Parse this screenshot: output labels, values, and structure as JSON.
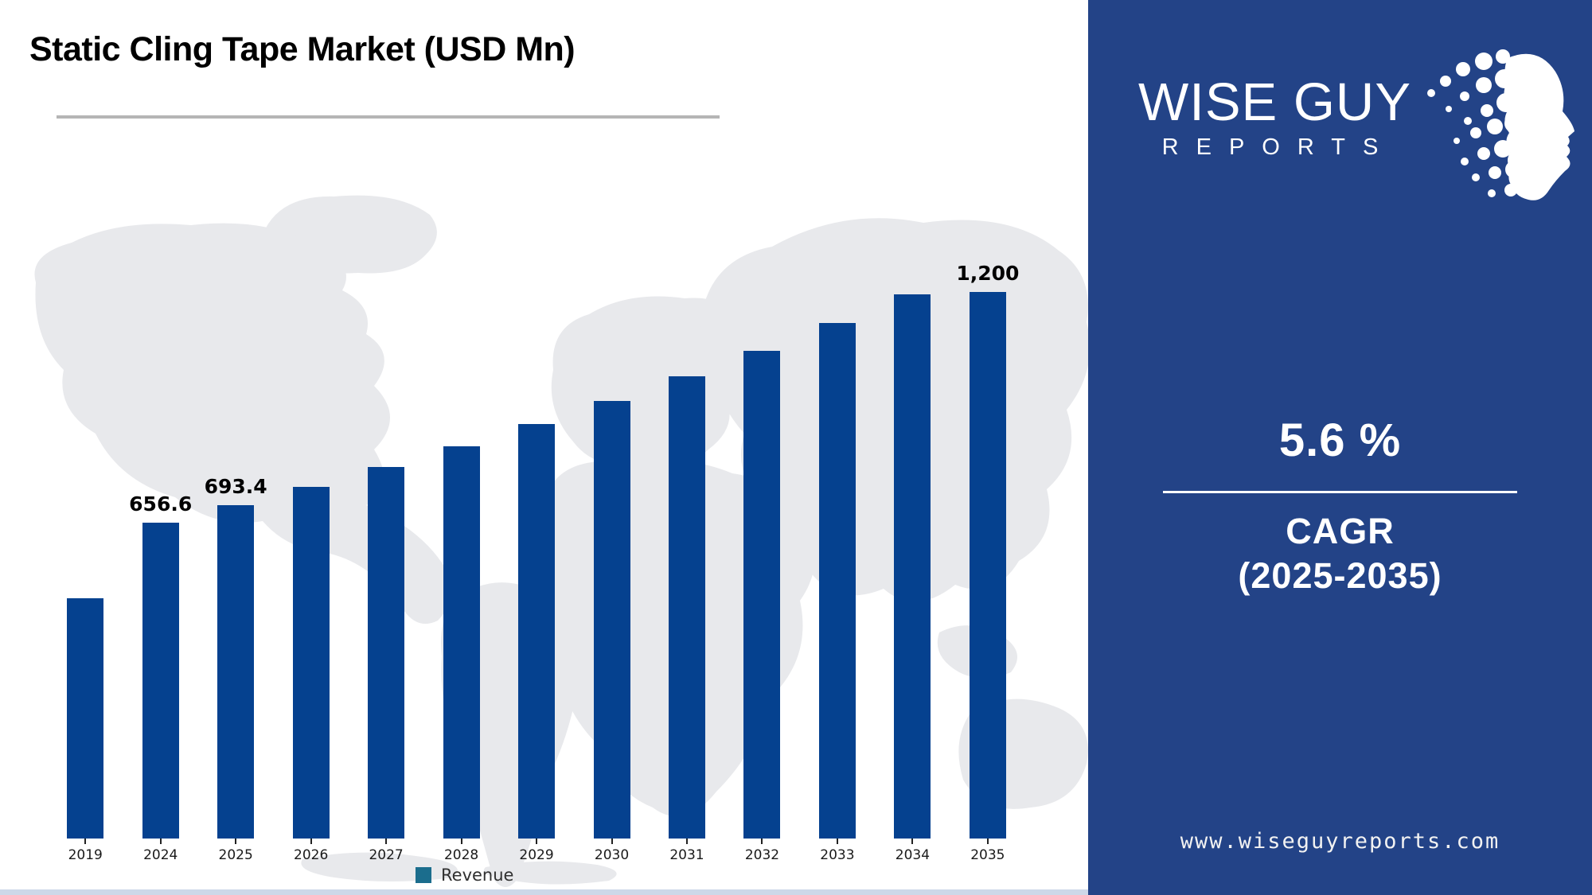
{
  "header": {
    "title": "Static Cling Tape Market (USD Mn)"
  },
  "chart_data": {
    "type": "bar",
    "title": "Static Cling Tape Market (USD Mn)",
    "unit": "USD Mn",
    "categories": [
      "2019",
      "2024",
      "2025",
      "2026",
      "2027",
      "2028",
      "2029",
      "2030",
      "2031",
      "2032",
      "2033",
      "2034",
      "2035"
    ],
    "values": [
      500,
      656.6,
      693.4,
      732.2,
      773.2,
      816.5,
      862.3,
      910.5,
      961.5,
      1015.4,
      1072.3,
      1132.3,
      1200
    ],
    "bar_labels": [
      "",
      "656.6",
      "693.4",
      "",
      "",
      "",
      "",
      "",
      "",
      "",
      "",
      "",
      "1,200"
    ],
    "series_name": "Revenue",
    "legend": [
      "Revenue"
    ],
    "legend_position": "bottom",
    "ylim": [
      0,
      1200
    ],
    "grid": false,
    "bar_color": "#05418f",
    "legend_swatch_color": "#1b6d8d"
  },
  "panel": {
    "logo_line1": "WISE GUY",
    "logo_line2": "REPORTS",
    "cagr_value": "5.6 %",
    "cagr_label": "CAGR",
    "cagr_period": "(2025-2035)",
    "website": "www.wiseguyreports.com",
    "bg_color": "#234387"
  }
}
